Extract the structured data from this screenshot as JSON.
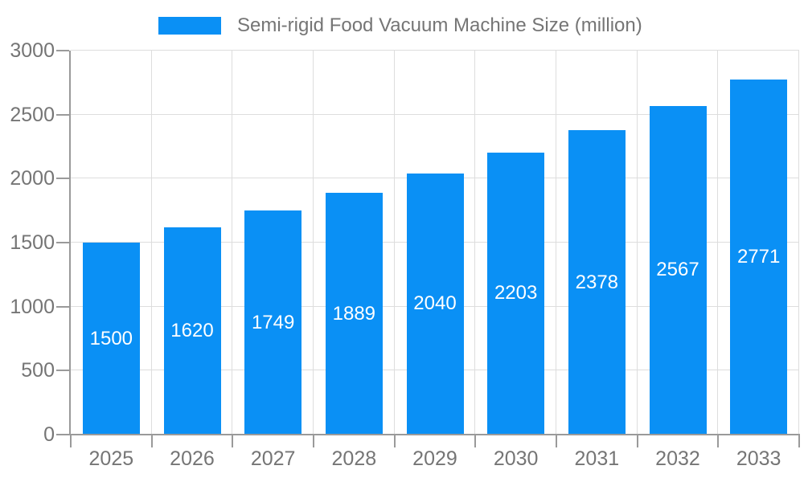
{
  "legend": {
    "label": "Semi-rigid Food Vacuum Machine Size (million)",
    "swatch_color": "#0a90f5"
  },
  "chart_data": {
    "type": "bar",
    "title": "Semi-rigid Food Vacuum Machine Size (million)",
    "series_name": "Semi-rigid Food Vacuum Machine Size (million)",
    "categories": [
      "2025",
      "2026",
      "2027",
      "2028",
      "2029",
      "2030",
      "2031",
      "2032",
      "2033"
    ],
    "values": [
      1500,
      1620,
      1749,
      1889,
      2040,
      2203,
      2378,
      2567,
      2771
    ],
    "xlabel": "",
    "ylabel": "",
    "ylim": [
      0,
      3000
    ],
    "y_ticks": [
      0,
      500,
      1000,
      1500,
      2000,
      2500,
      3000
    ],
    "grid": true,
    "legend_position": "top",
    "bar_labels_position": "inside-center",
    "colors": {
      "bar": "#0a90f5",
      "bar_label": "#ffffff",
      "axis_text": "#757575",
      "grid_line": "#dddddd",
      "axis_line": "#9a9a9a"
    }
  }
}
